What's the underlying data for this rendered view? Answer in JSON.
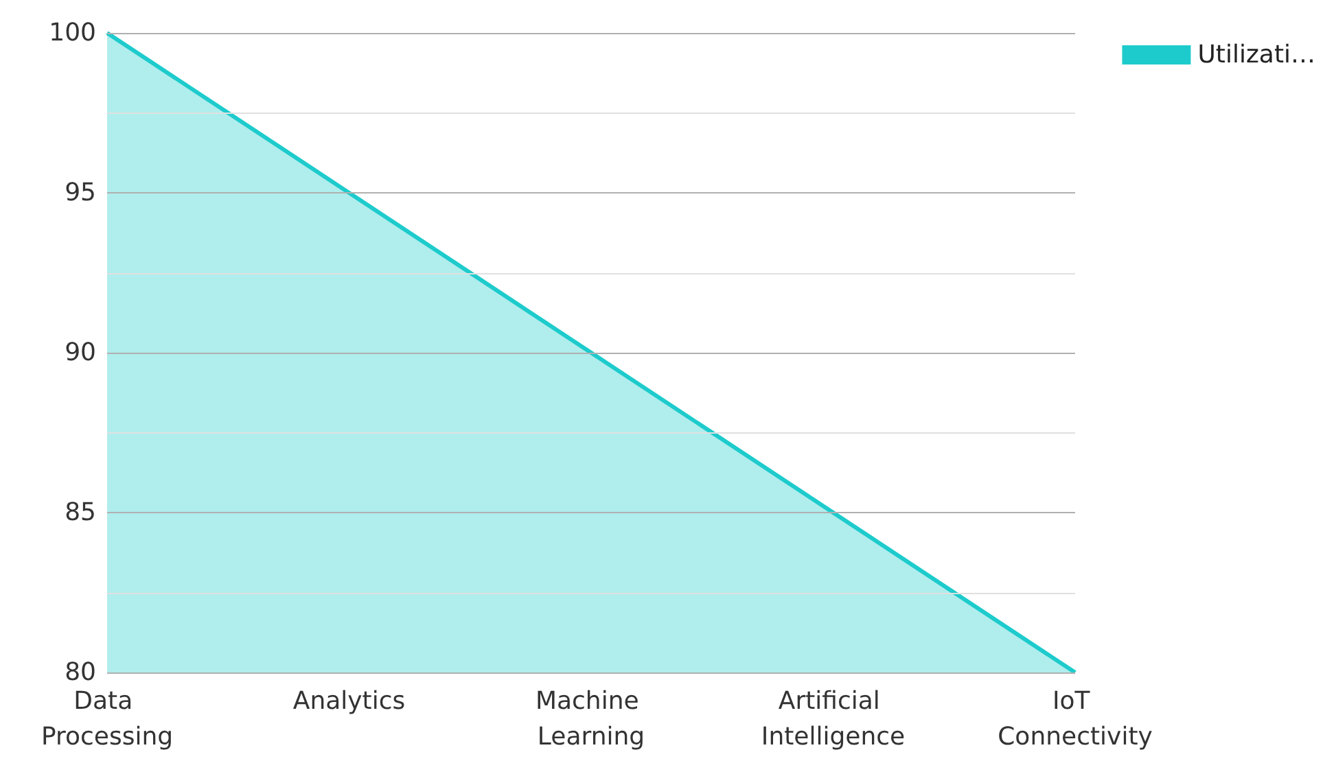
{
  "chart_data": {
    "type": "area",
    "categories": [
      "Data Processing",
      "Analytics",
      "Machine Learning",
      "Artificial Intelligence",
      "IoT Connectivity"
    ],
    "series": [
      {
        "name": "Utilizati…",
        "color": "#1ecbcc",
        "values": [
          100,
          95,
          90,
          85,
          80
        ]
      }
    ],
    "ylim": [
      80,
      100
    ],
    "yticks": [
      80,
      {
        "value": 82.5,
        "label": null
      },
      85,
      {
        "value": 87.5,
        "label": null
      },
      90,
      {
        "value": 92.5,
        "label": null
      },
      95,
      {
        "value": 97.5,
        "label": null
      },
      100
    ],
    "grid": "y",
    "legend": "top right",
    "marker": "none"
  }
}
